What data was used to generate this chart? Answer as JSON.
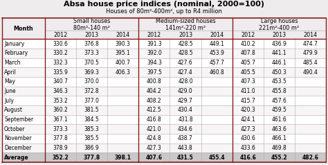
{
  "title": "Absa house price indices (nominal, 2000=100)",
  "subtitle": "Houses of 80m²-400m², up to R4 million",
  "small_header": "Small houses\n80m²-140 m²",
  "medium_header": "Medium-sized houses\n141m²-220 m²",
  "large_header": "Large houses\n221m²-400 m²",
  "years": [
    "2012",
    "2013",
    "2014"
  ],
  "months": [
    "January",
    "February",
    "March",
    "April",
    "May",
    "June",
    "July",
    "August",
    "September",
    "October",
    "November",
    "December",
    "Average"
  ],
  "small": [
    [
      330.6,
      376.8,
      390.3
    ],
    [
      330.2,
      373.3,
      395.1
    ],
    [
      332.3,
      370.5,
      400.7
    ],
    [
      335.9,
      369.3,
      406.3
    ],
    [
      340.7,
      370.0,
      null
    ],
    [
      346.3,
      372.8,
      null
    ],
    [
      353.2,
      377.0,
      null
    ],
    [
      360.2,
      381.5,
      null
    ],
    [
      367.1,
      384.5,
      null
    ],
    [
      373.3,
      385.3,
      null
    ],
    [
      377.8,
      385.5,
      null
    ],
    [
      378.9,
      386.9,
      null
    ],
    [
      352.2,
      377.8,
      398.1
    ]
  ],
  "medium": [
    [
      391.3,
      428.5,
      449.1
    ],
    [
      392.0,
      428.5,
      453.9
    ],
    [
      394.3,
      427.6,
      457.7
    ],
    [
      397.5,
      427.4,
      460.8
    ],
    [
      400.8,
      428.0,
      null
    ],
    [
      404.2,
      429.0,
      null
    ],
    [
      408.2,
      429.7,
      null
    ],
    [
      412.5,
      430.4,
      null
    ],
    [
      416.8,
      431.8,
      null
    ],
    [
      421.0,
      434.6,
      null
    ],
    [
      424.8,
      438.7,
      null
    ],
    [
      427.3,
      443.8,
      null
    ],
    [
      407.6,
      431.5,
      455.4
    ]
  ],
  "large": [
    [
      410.2,
      436.9,
      474.7
    ],
    [
      407.8,
      441.1,
      479.9
    ],
    [
      405.7,
      446.1,
      485.4
    ],
    [
      405.5,
      450.3,
      490.4
    ],
    [
      407.3,
      453.5,
      null
    ],
    [
      411.0,
      455.8,
      null
    ],
    [
      415.7,
      457.6,
      null
    ],
    [
      420.3,
      459.5,
      null
    ],
    [
      424.1,
      461.6,
      null
    ],
    [
      427.3,
      463.6,
      null
    ],
    [
      430.6,
      466.1,
      null
    ],
    [
      433.6,
      469.8,
      null
    ],
    [
      416.6,
      455.2,
      482.6
    ]
  ],
  "bg_color": "#eeecec",
  "row_alt_color": "#f7f5f5",
  "row_white": "#ffffff",
  "avg_bg": "#cac8c8",
  "border_color_dark": "#8b1a1a",
  "border_color_light": "#b0a8a8",
  "title_fontsize": 8.0,
  "subtitle_fontsize": 6.0,
  "header_fontsize": 5.8,
  "data_fontsize": 5.5
}
